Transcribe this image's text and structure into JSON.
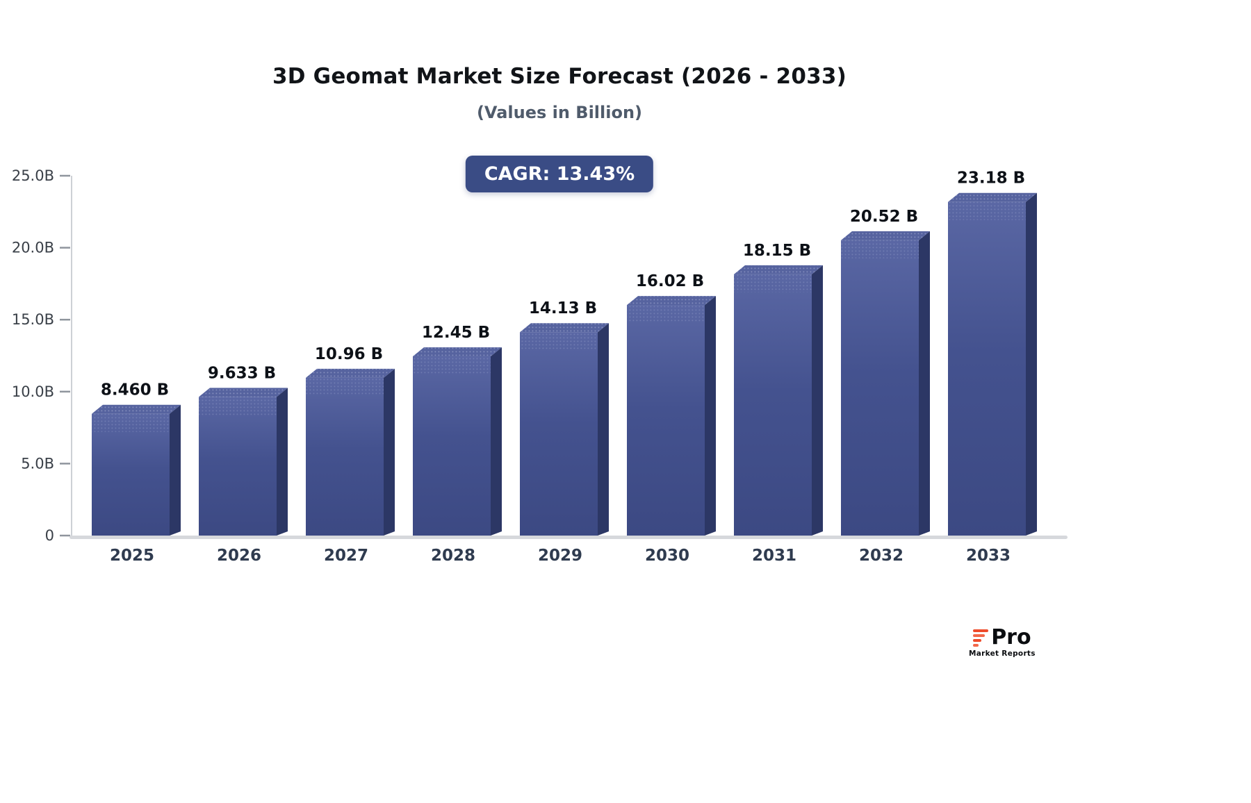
{
  "header": {
    "title": "3D Geomat Market Size Forecast (2026 - 2033)",
    "subtitle": "(Values in Billion)"
  },
  "badge": {
    "label": "CAGR: 13.43%"
  },
  "chart_data": {
    "type": "bar",
    "title": "3D Geomat Market Size Forecast (2026 - 2033)",
    "subtitle": "(Values in Billion)",
    "cagr": "13.43%",
    "categories": [
      "2025",
      "2026",
      "2027",
      "2028",
      "2029",
      "2030",
      "2031",
      "2032",
      "2033"
    ],
    "values": [
      8.46,
      9.633,
      10.96,
      12.45,
      14.13,
      16.02,
      18.15,
      20.52,
      23.18
    ],
    "labels": [
      "8.460 B",
      "9.633 B",
      "10.96 B",
      "12.45 B",
      "14.13 B",
      "16.02 B",
      "18.15 B",
      "20.52 B",
      "23.18 B"
    ],
    "xlabel": "",
    "ylabel": "",
    "ylim": [
      0,
      25
    ],
    "yticks": [
      {
        "v": 0,
        "label": "0"
      },
      {
        "v": 5,
        "label": "5.0B"
      },
      {
        "v": 10,
        "label": "10.0B"
      },
      {
        "v": 15,
        "label": "15.0B"
      },
      {
        "v": 20,
        "label": "20.0B"
      },
      {
        "v": 25,
        "label": "25.0B"
      }
    ],
    "legend": "none",
    "grid": "ticks-only",
    "colors": {
      "bar_front_top": "#5a67a4",
      "bar_front_mid": "#44528f",
      "bar_front_bottom": "#3c4983",
      "bar_side": "#2c3765",
      "bar_top": "#56639f",
      "axis": "#cdd0d5",
      "baseline": "#d6d8dc",
      "tick": "#8f959d",
      "badge": "#3a4c85"
    }
  },
  "logo": {
    "name": "Pro",
    "sub": "Market Reports"
  }
}
